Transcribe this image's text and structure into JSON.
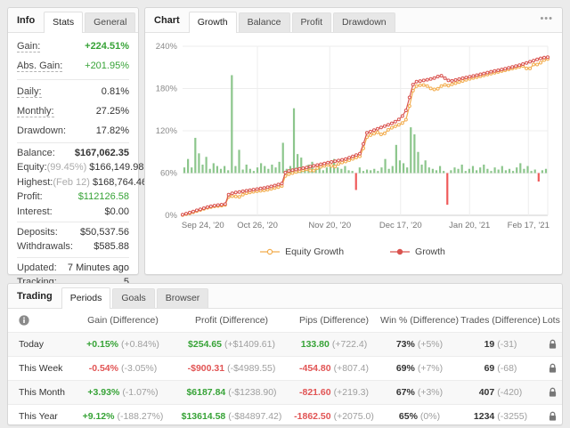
{
  "colors": {
    "positive_text": "#37a337",
    "negative_text": "#e15454",
    "muted_text": "#9e9e9e",
    "equity_line": "#f2ac4d",
    "growth_line": "#d9534f",
    "bar_positive": "#8cc68c",
    "bar_negative": "#ef5b5b",
    "grid": "#ededed"
  },
  "stats_panel": {
    "title": "Info",
    "tabs": [
      {
        "label": "Stats",
        "active": true
      },
      {
        "label": "General",
        "active": false
      }
    ],
    "groups": [
      {
        "roomy": true,
        "rows": [
          {
            "label": "Gain:",
            "underline": true,
            "value": "+224.51%",
            "tone": "green",
            "bold": true
          },
          {
            "label": "Abs. Gain:",
            "underline": true,
            "value": "+201.95%",
            "tone": "green"
          }
        ]
      },
      {
        "roomy": true,
        "rows": [
          {
            "label": "Daily:",
            "underline": true,
            "value": "0.81%"
          },
          {
            "label": "Monthly:",
            "underline": true,
            "value": "27.25%"
          },
          {
            "label": "Drawdown:",
            "value": "17.82%"
          }
        ]
      },
      {
        "rows": [
          {
            "label": "Balance:",
            "value": "$167,062.35",
            "bold": true
          },
          {
            "label": "Equity:",
            "prefix": "(99.45%)",
            "value": "$166,149.98"
          },
          {
            "label": "Highest:",
            "prefix": "(Feb 12)",
            "value": "$168,764.46"
          },
          {
            "label": "Profit:",
            "value": "$112126.58",
            "tone": "green"
          },
          {
            "label": "Interest:",
            "value": "$0.00"
          }
        ]
      },
      {
        "rows": [
          {
            "label": "Deposits:",
            "value": "$50,537.56"
          },
          {
            "label": "Withdrawals:",
            "value": "$585.88"
          }
        ]
      },
      {
        "rows": [
          {
            "label": "Updated:",
            "value": "7 Minutes ago"
          },
          {
            "label": "Tracking:",
            "value": "5"
          }
        ]
      }
    ]
  },
  "chart_panel": {
    "title": "Chart",
    "tabs": [
      {
        "label": "Growth",
        "active": true
      },
      {
        "label": "Balance",
        "active": false
      },
      {
        "label": "Profit",
        "active": false
      },
      {
        "label": "Drawdown",
        "active": false
      }
    ],
    "menu_icon": "•••",
    "chart_data": {
      "type": "line+bar",
      "y_unit": "%",
      "y_ticks": [
        0,
        60,
        120,
        180,
        240
      ],
      "y_tick_labels": [
        "0%",
        "60%",
        "120%",
        "180%",
        "240%"
      ],
      "ylim": [
        0,
        252
      ],
      "x_ticks": [
        {
          "label": "Sep 24, '20",
          "f": 0.012
        },
        {
          "label": "Oct 26, '20",
          "f": 0.205
        },
        {
          "label": "Nov 20, '20",
          "f": 0.403
        },
        {
          "label": "Dec 17, '20",
          "f": 0.597
        },
        {
          "label": "Jan 20, '21",
          "f": 0.786
        },
        {
          "label": "Feb 17, '21",
          "f": 0.947
        }
      ],
      "series": [
        {
          "name": "Equity Growth",
          "color": "#f2ac4d",
          "keypoints": [
            [
              0,
              0.5
            ],
            [
              0.02,
              3
            ],
            [
              0.045,
              7
            ],
            [
              0.07,
              11
            ],
            [
              0.09,
              13
            ],
            [
              0.112,
              14
            ],
            [
              0.118,
              15
            ],
            [
              0.124,
              26
            ],
            [
              0.14,
              27.5
            ],
            [
              0.155,
              26
            ],
            [
              0.17,
              31
            ],
            [
              0.2,
              34
            ],
            [
              0.23,
              36
            ],
            [
              0.25,
              38.5
            ],
            [
              0.268,
              41
            ],
            [
              0.276,
              42.5
            ],
            [
              0.282,
              57
            ],
            [
              0.31,
              61.5
            ],
            [
              0.34,
              65.5
            ],
            [
              0.356,
              62.5
            ],
            [
              0.37,
              67.5
            ],
            [
              0.4,
              72
            ],
            [
              0.415,
              68.5
            ],
            [
              0.43,
              74
            ],
            [
              0.447,
              76.5
            ],
            [
              0.462,
              79.5
            ],
            [
              0.475,
              82
            ],
            [
              0.486,
              84
            ],
            [
              0.492,
              80
            ],
            [
              0.498,
              109
            ],
            [
              0.515,
              114
            ],
            [
              0.535,
              118
            ],
            [
              0.548,
              113.5
            ],
            [
              0.562,
              121
            ],
            [
              0.575,
              125
            ],
            [
              0.59,
              128
            ],
            [
              0.602,
              131
            ],
            [
              0.612,
              136
            ],
            [
              0.62,
              152
            ],
            [
              0.63,
              176
            ],
            [
              0.638,
              183
            ],
            [
              0.655,
              185.5
            ],
            [
              0.668,
              184
            ],
            [
              0.68,
              180
            ],
            [
              0.695,
              178
            ],
            [
              0.705,
              182
            ],
            [
              0.715,
              186
            ],
            [
              0.725,
              183.5
            ],
            [
              0.74,
              186.5
            ],
            [
              0.76,
              189.5
            ],
            [
              0.78,
              193
            ],
            [
              0.8,
              195.5
            ],
            [
              0.82,
              198
            ],
            [
              0.84,
              200.5
            ],
            [
              0.86,
              203
            ],
            [
              0.88,
              205.5
            ],
            [
              0.9,
              208
            ],
            [
              0.92,
              210.5
            ],
            [
              0.935,
              212.5
            ],
            [
              0.947,
              205.5
            ],
            [
              0.958,
              213
            ],
            [
              0.967,
              216
            ],
            [
              0.974,
              212.5
            ],
            [
              0.985,
              219.5
            ],
            [
              1,
              222
            ]
          ]
        },
        {
          "name": "Growth",
          "color": "#d9534f",
          "keypoints": [
            [
              0,
              1
            ],
            [
              0.02,
              4
            ],
            [
              0.045,
              8
            ],
            [
              0.07,
              12
            ],
            [
              0.09,
              14
            ],
            [
              0.112,
              15.5
            ],
            [
              0.118,
              16
            ],
            [
              0.124,
              29
            ],
            [
              0.14,
              32
            ],
            [
              0.17,
              34.5
            ],
            [
              0.2,
              37
            ],
            [
              0.23,
              39.5
            ],
            [
              0.25,
              42
            ],
            [
              0.268,
              44.5
            ],
            [
              0.276,
              46
            ],
            [
              0.282,
              62
            ],
            [
              0.31,
              65
            ],
            [
              0.34,
              68
            ],
            [
              0.37,
              71.5
            ],
            [
              0.4,
              75
            ],
            [
              0.425,
              77.5
            ],
            [
              0.447,
              80
            ],
            [
              0.462,
              83
            ],
            [
              0.475,
              85.5
            ],
            [
              0.486,
              87.5
            ],
            [
              0.492,
              85.5
            ],
            [
              0.498,
              116
            ],
            [
              0.515,
              119
            ],
            [
              0.535,
              123
            ],
            [
              0.555,
              127
            ],
            [
              0.575,
              131
            ],
            [
              0.59,
              135
            ],
            [
              0.602,
              141
            ],
            [
              0.61,
              147
            ],
            [
              0.617,
              155
            ],
            [
              0.623,
              172
            ],
            [
              0.63,
              185
            ],
            [
              0.638,
              189.5
            ],
            [
              0.655,
              191
            ],
            [
              0.675,
              193
            ],
            [
              0.695,
              195.5
            ],
            [
              0.705,
              199.5
            ],
            [
              0.715,
              196
            ],
            [
              0.725,
              192
            ],
            [
              0.735,
              190.5
            ],
            [
              0.75,
              192.5
            ],
            [
              0.77,
              195
            ],
            [
              0.79,
              197
            ],
            [
              0.81,
              199.5
            ],
            [
              0.83,
              202
            ],
            [
              0.85,
              204.5
            ],
            [
              0.87,
              206.5
            ],
            [
              0.89,
              209
            ],
            [
              0.91,
              211.5
            ],
            [
              0.928,
              214
            ],
            [
              0.945,
              217
            ],
            [
              0.96,
              219.5
            ],
            [
              0.972,
              221.5
            ],
            [
              0.985,
              223.5
            ],
            [
              1,
              224.5
            ]
          ]
        }
      ],
      "daily_bars": {
        "baseline": 60,
        "values": [
          8,
          20,
          8,
          50,
          28,
          12,
          23,
          6,
          14,
          10,
          6,
          10,
          4,
          139,
          10,
          33,
          5,
          12,
          6,
          3,
          8,
          14,
          10,
          6,
          12,
          8,
          16,
          43,
          6,
          10,
          92,
          27,
          22,
          8,
          12,
          16,
          6,
          10,
          4,
          8,
          12,
          20,
          8,
          6,
          10,
          4,
          3,
          -24,
          8,
          3,
          5,
          4,
          6,
          3,
          8,
          20,
          6,
          10,
          40,
          18,
          14,
          8,
          65,
          55,
          30,
          12,
          18,
          8,
          6,
          4,
          10,
          3,
          -45,
          4,
          8,
          6,
          12,
          3,
          6,
          10,
          4,
          8,
          12,
          6,
          3,
          8,
          5,
          10,
          4,
          6,
          3,
          8,
          14,
          6,
          10,
          3,
          5,
          -12,
          4,
          6
        ]
      },
      "legend": [
        "Equity Growth",
        "Growth"
      ]
    }
  },
  "trading_panel": {
    "title": "Trading",
    "tabs": [
      {
        "label": "Periods",
        "active": true
      },
      {
        "label": "Goals",
        "active": false
      },
      {
        "label": "Browser",
        "active": false
      }
    ],
    "table": {
      "headers": [
        "Gain (Difference)",
        "Profit (Difference)",
        "Pips (Difference)",
        "Win % (Difference)",
        "Trades (Difference)",
        "Lots (Difference)"
      ],
      "rows": [
        {
          "label": "Today",
          "cells": [
            {
              "main": "+0.15%",
              "diff": "(+0.84%)",
              "tone": "green"
            },
            {
              "main": "$254.65",
              "diff": "(+$1409.61)",
              "tone": "green"
            },
            {
              "main": "133.80",
              "diff": "(+722.4)",
              "tone": "green"
            },
            {
              "main": "73%",
              "diff": "(+5%)",
              "tone": "dark"
            },
            {
              "main": "19",
              "diff": "(-31)",
              "tone": "dark"
            },
            {
              "lock": true
            }
          ]
        },
        {
          "label": "This Week",
          "cells": [
            {
              "main": "-0.54%",
              "diff": "(-3.05%)",
              "tone": "red"
            },
            {
              "main": "-$900.31",
              "diff": "(-$4989.55)",
              "tone": "red"
            },
            {
              "main": "-454.80",
              "diff": "(+807.4)",
              "tone": "red"
            },
            {
              "main": "69%",
              "diff": "(+7%)",
              "tone": "dark"
            },
            {
              "main": "69",
              "diff": "(-68)",
              "tone": "dark"
            },
            {
              "lock": true
            }
          ]
        },
        {
          "label": "This Month",
          "cells": [
            {
              "main": "+3.93%",
              "diff": "(-1.07%)",
              "tone": "green"
            },
            {
              "main": "$6187.84",
              "diff": "(-$1238.90)",
              "tone": "green"
            },
            {
              "main": "-821.60",
              "diff": "(+219.3)",
              "tone": "red"
            },
            {
              "main": "67%",
              "diff": "(+3%)",
              "tone": "dark"
            },
            {
              "main": "407",
              "diff": "(-420)",
              "tone": "dark"
            },
            {
              "lock": true
            }
          ]
        },
        {
          "label": "This Year",
          "cells": [
            {
              "main": "+9.12%",
              "diff": "(-188.27%)",
              "tone": "green"
            },
            {
              "main": "$13614.58",
              "diff": "(-$84897.42)",
              "tone": "green"
            },
            {
              "main": "-1862.50",
              "diff": "(+2075.0)",
              "tone": "red"
            },
            {
              "main": "65%",
              "diff": "(0%)",
              "tone": "dark"
            },
            {
              "main": "1234",
              "diff": "(-3255)",
              "tone": "dark"
            },
            {
              "lock": true
            }
          ]
        }
      ]
    }
  }
}
